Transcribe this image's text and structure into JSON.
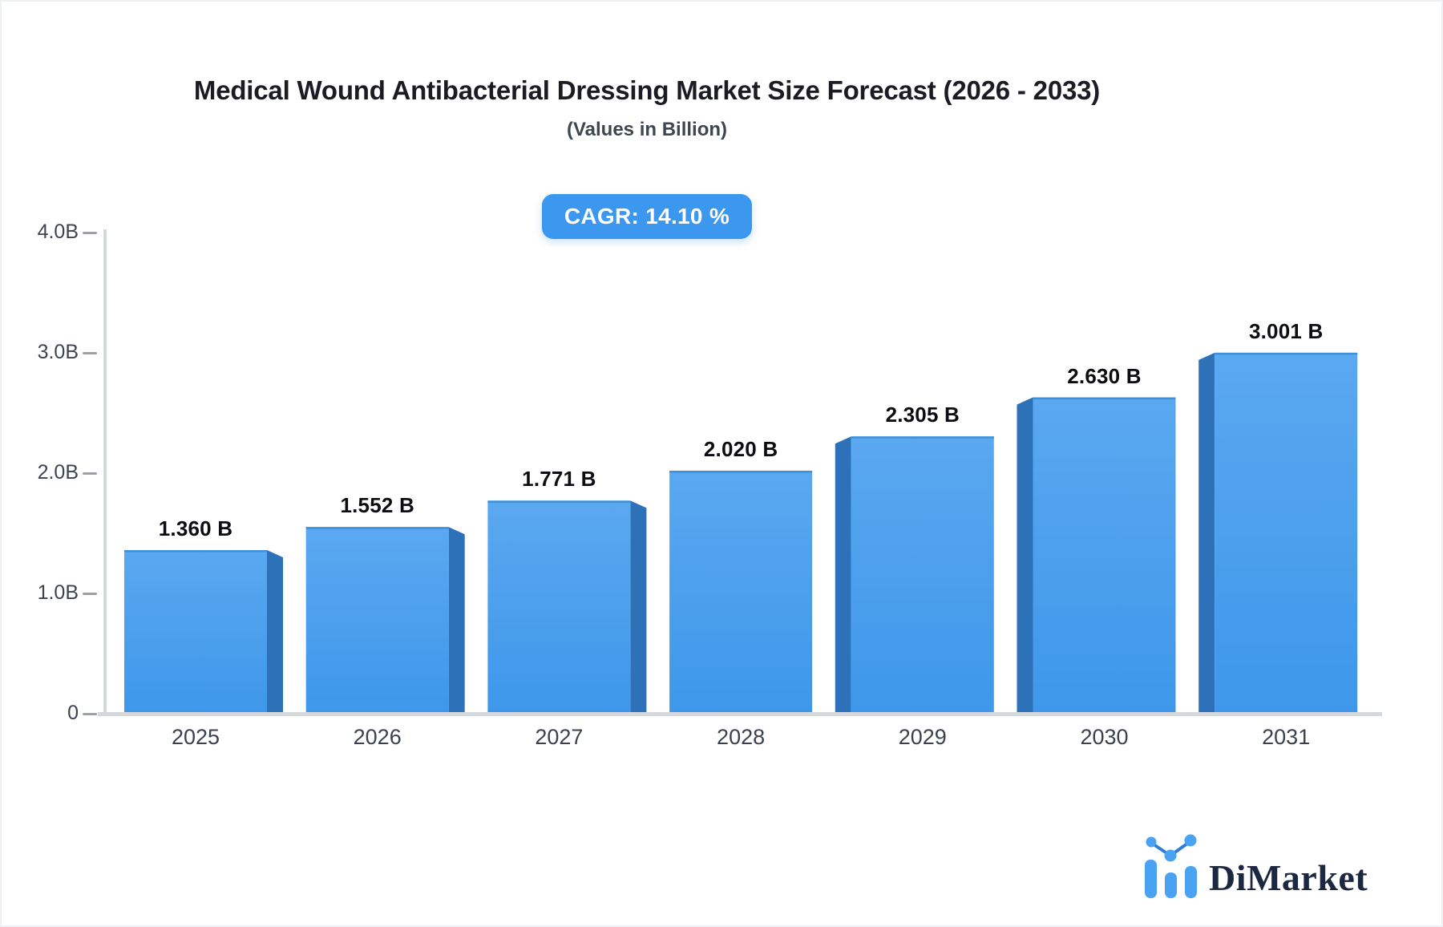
{
  "header": {
    "title": "Medical Wound Antibacterial Dressing Market Size Forecast (2026 - 2033)",
    "subtitle": "(Values in Billion)",
    "cagr_label": "CAGR: 14.10 %"
  },
  "footer": {
    "brand": "DiMarket"
  },
  "colors": {
    "accent_blue": "#3b98ee",
    "bar_face_top": "#5aa8f0",
    "bar_face_bottom": "#3e97ea",
    "bar_side": "#2d72b8",
    "bar_top_edge": "#3f90da",
    "axis_line": "#d4d8dd",
    "tick_dash": "#9ba1aa",
    "logo_blue": "#4aa2f3",
    "logo_line_blue": "#2e7ed8",
    "logo_text_navy": "#1c2742"
  },
  "chart_data": {
    "type": "bar",
    "title": "Medical Wound Antibacterial Dressing Market Size Forecast (2026 - 2033)",
    "subtitle": "(Values in Billion)",
    "cagr_badge": "CAGR: 14.10 %",
    "categories": [
      "2025",
      "2026",
      "2027",
      "2028",
      "2029",
      "2030",
      "2031"
    ],
    "values": [
      1.36,
      1.552,
      1.771,
      2.02,
      2.305,
      2.63,
      3.001
    ],
    "value_labels": [
      "1.360 B",
      "1.552 B",
      "1.771 B",
      "2.020 B",
      "2.305 B",
      "2.630 B",
      "3.001 B"
    ],
    "unit": "Billion",
    "xlabel": "",
    "ylabel": "",
    "ylim": [
      0,
      4.0
    ],
    "ytick_labels": [
      "0",
      "1.0B",
      "2.0B",
      "3.0B",
      "4.0B"
    ],
    "grid": false,
    "legend": false,
    "bar_style": "3d-extruded"
  }
}
